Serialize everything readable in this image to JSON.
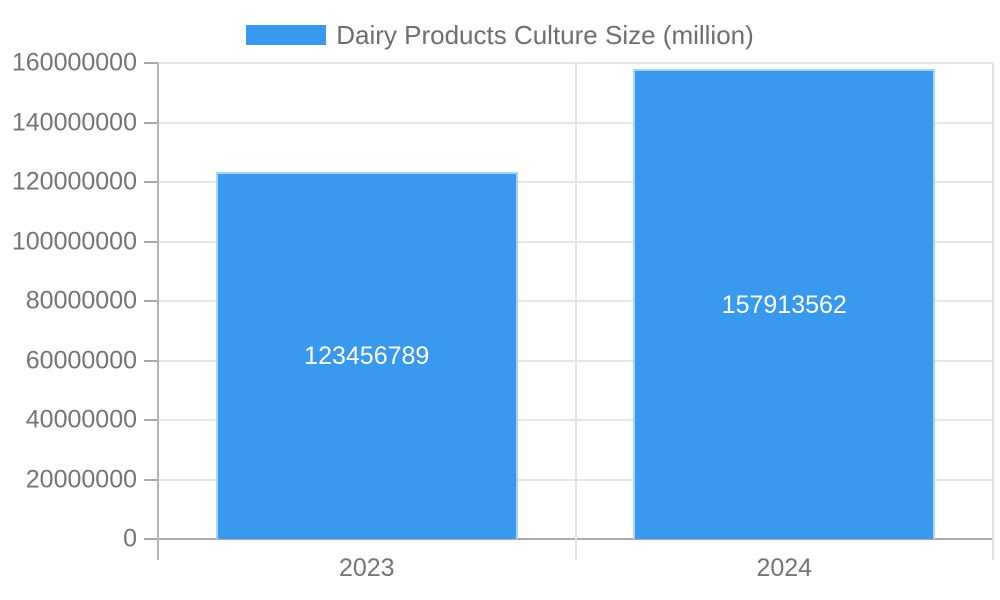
{
  "chart_data": {
    "type": "bar",
    "title": "Dairy Products Culture Size (million)",
    "legend": {
      "label": "Dairy Products Culture Size (million)",
      "position": "top"
    },
    "categories": [
      "2023",
      "2024"
    ],
    "values": [
      123456789,
      157913562
    ],
    "data_labels": [
      "123456789",
      "157913562"
    ],
    "xlabel": "",
    "ylabel": "",
    "ylim": [
      0,
      160000000
    ],
    "ytick_step": 20000000,
    "ytick_labels": [
      "0",
      "20000000",
      "40000000",
      "60000000",
      "80000000",
      "100000000",
      "120000000",
      "140000000",
      "160000000"
    ],
    "grid": true,
    "colors": {
      "bar": "#3999ee",
      "bar_edge": "#aad4f6",
      "grid_line": "#e6e6e6",
      "divider_line": "#e3e3e3",
      "axis_line": "#b3b3b3",
      "baseline": "#ababab",
      "tick_mark": "#a9a9a9",
      "axis_text": "#757575",
      "legend_text": "#6e6e6e",
      "data_label_text": "#ffffff",
      "background": "#ffffff"
    }
  }
}
